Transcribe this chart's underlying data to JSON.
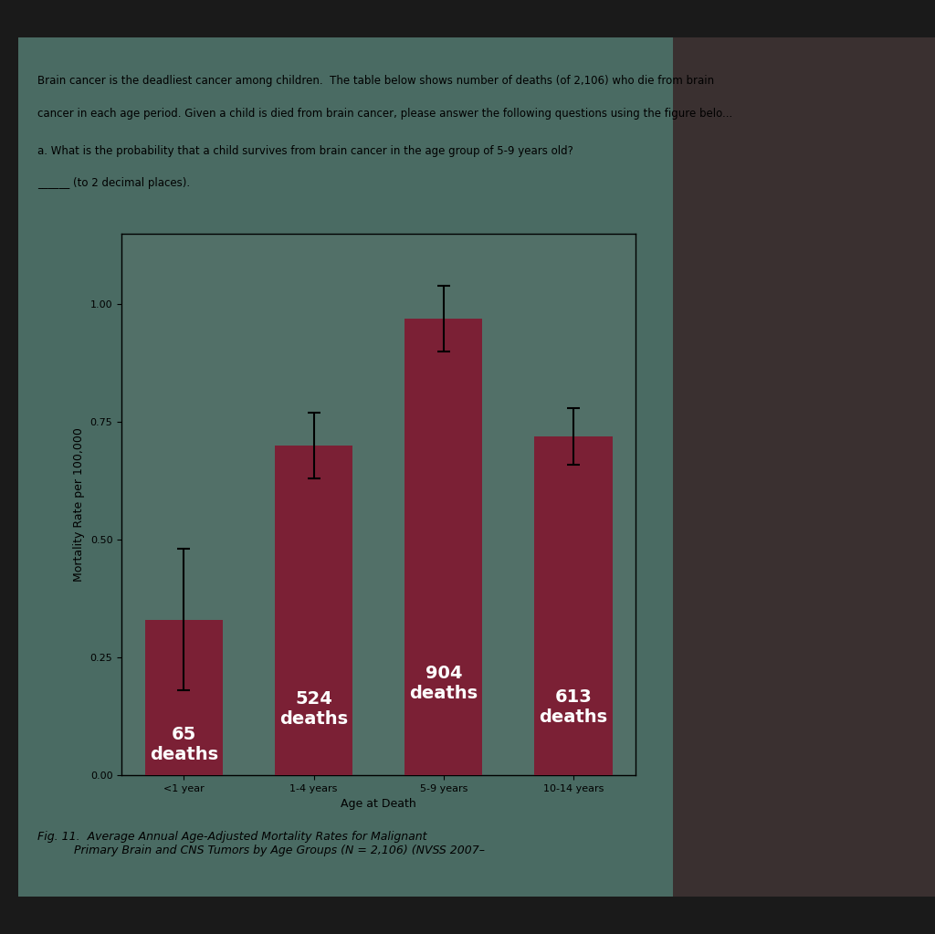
{
  "categories": [
    "<1 year",
    "1-4 years",
    "5-9 years",
    "10-14 years"
  ],
  "values": [
    0.33,
    0.7,
    0.97,
    0.72
  ],
  "errors": [
    0.15,
    0.07,
    0.07,
    0.06
  ],
  "deaths": [
    "65\ndeaths",
    "524\ndeaths",
    "904\ndeaths",
    "613\ndeaths"
  ],
  "bar_color": "#7B2035",
  "screen_bg": "#4A6B63",
  "plot_bg_color": "#527068",
  "text_color": "#ffffff",
  "dark_bg": "#1a1a1a",
  "title_line1": "Brain cancer is the deadliest cancer among children.  The table below shows number of deaths (of 2,106) who die from brain",
  "title_line2": "cancer in each age period. Given a child is died from brain cancer, please answer the following questions using the figure belo...",
  "question_text": "a. What is the probability that a child survives from brain cancer in the age group of 5-9 years old?",
  "blank_label": "______ (to 2 decimal places).",
  "xlabel": "Age at Death",
  "ylabel": "Mortality Rate per 100,000",
  "caption_bold": "Fig. 11.",
  "caption_rest": "  Average Annual Age-Adjusted Mortality Rates for Malignant\n          Primary Brain and CNS Tumors by Age Groups (N = 2,106) (NVSS 2007–",
  "ylim": [
    0.0,
    1.15
  ],
  "yticks": [
    0.0,
    0.25,
    0.5,
    0.75,
    1.0
  ],
  "title_fontsize": 8.5,
  "axis_label_fontsize": 9,
  "tick_fontsize": 8,
  "bar_label_fontsize": 14,
  "caption_fontsize": 9
}
